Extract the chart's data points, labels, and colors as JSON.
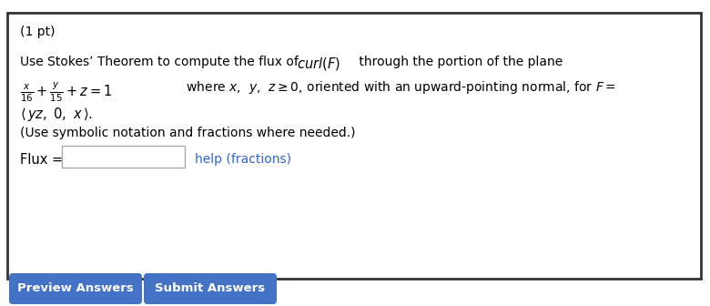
{
  "bg_color": "#ffffff",
  "border_color": "#333333",
  "pt_text": "(1 pt)",
  "note": "(Use symbolic notation and fractions where needed.)",
  "flux_label": "Flux =",
  "help_text": "help (fractions)",
  "help_color": "#3366cc",
  "input_box_border": "#aaaaaa",
  "btn1_text": "Preview Answers",
  "btn2_text": "Submit Answers",
  "btn_color": "#4472c4",
  "btn_text_color": "#ffffff",
  "figsize": [
    7.8,
    3.36
  ],
  "dpi": 100
}
